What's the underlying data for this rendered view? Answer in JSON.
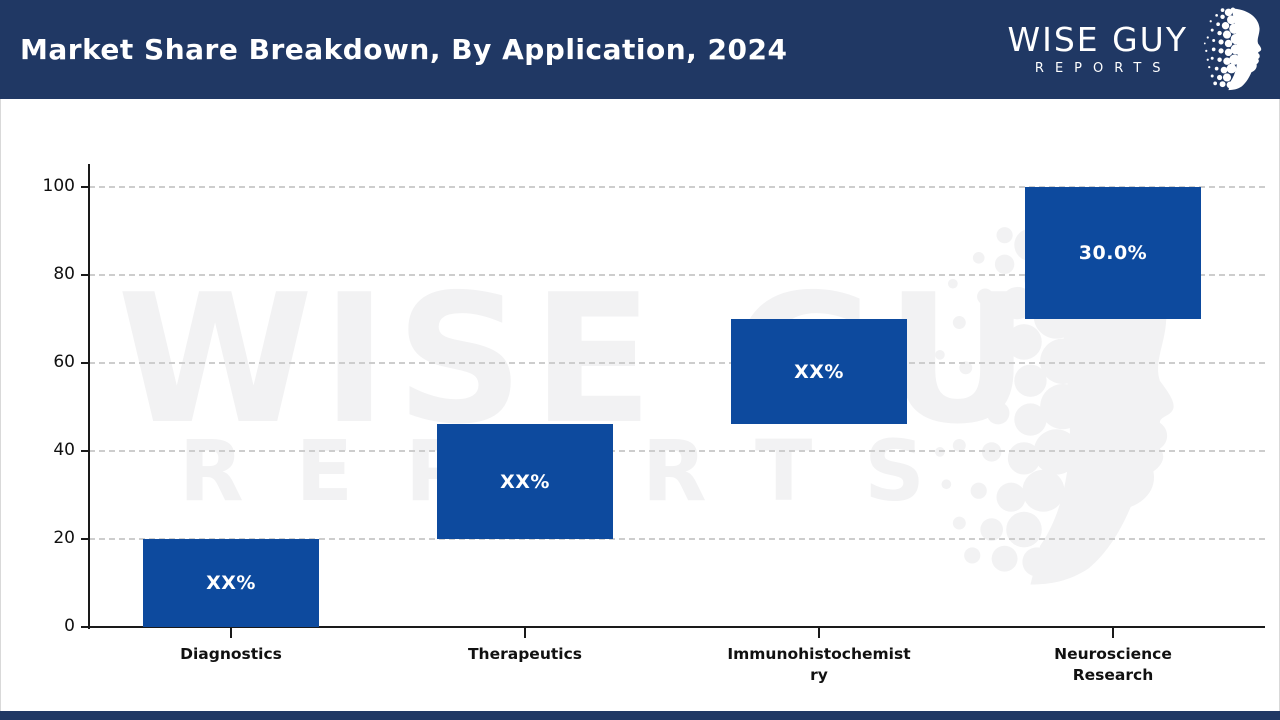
{
  "header": {
    "title": "Market Share Breakdown, By Application, 2024",
    "logo": {
      "primary": "WISE GUY",
      "secondary": "REPORTS"
    }
  },
  "watermark": {
    "primary": "WISE GU",
    "secondary": "REPORTS"
  },
  "chart_data": {
    "type": "bar",
    "subtype": "waterfall",
    "title": "Market Share Breakdown, By Application, 2024",
    "categories": [
      "Diagnostics",
      "Therapeutics",
      "Immunohistochemistry",
      "Neuroscience Research"
    ],
    "category_display_lines": [
      [
        "Diagnostics"
      ],
      [
        "Therapeutics"
      ],
      [
        "Immunohistochemist",
        "ry"
      ],
      [
        "Neuroscience",
        "Research"
      ]
    ],
    "bars": [
      {
        "category": "Diagnostics",
        "start": 0,
        "end": 20,
        "value_label": "XX%"
      },
      {
        "category": "Therapeutics",
        "start": 20,
        "end": 46,
        "value_label": "XX%"
      },
      {
        "category": "Immunohistochemistry",
        "start": 46,
        "end": 70,
        "value_label": "XX%"
      },
      {
        "category": "Neuroscience Research",
        "start": 70,
        "end": 100,
        "value_label": "30.0%"
      }
    ],
    "xlabel": "",
    "ylabel": "",
    "ylim": [
      0,
      105
    ],
    "yticks": [
      0,
      20,
      40,
      60,
      80,
      100
    ],
    "grid": "horizontal-dashed",
    "legend": "none"
  },
  "colors": {
    "header_bg": "#203864",
    "footer_bg": "#203864",
    "bar": "#0d4a9e",
    "bar_label": "#ffffff",
    "gridline": "#cdcdcd",
    "axis": "#1a1a1a",
    "tick_label": "#111111",
    "watermark": "#f2f2f3"
  }
}
